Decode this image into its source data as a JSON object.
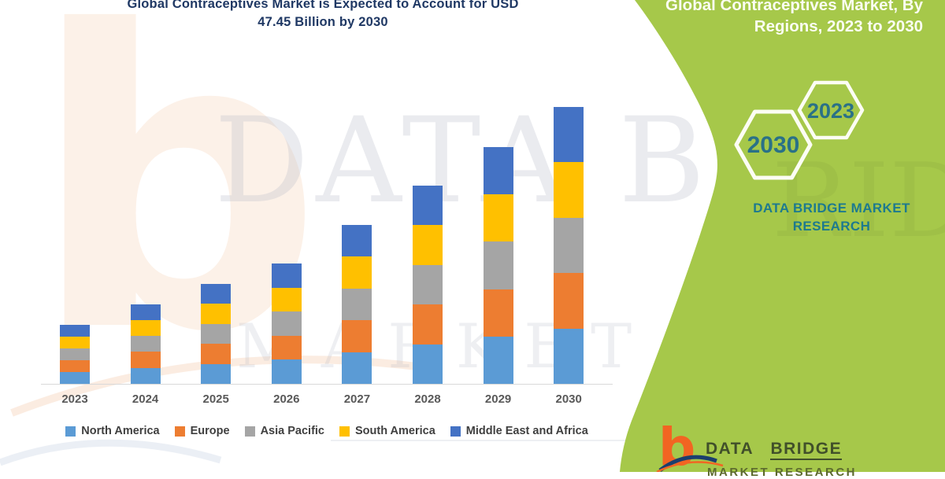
{
  "chart_title": {
    "line1": "Global Contraceptives Market is Expected to Account for USD",
    "line2": "47.45 Billion by 2030"
  },
  "chart_data": {
    "type": "bar",
    "subtype": "stacked",
    "title": "Global Contraceptives Market is Expected to Account for USD 47.45 Billion by 2030",
    "unit": "USD Billion",
    "categories": [
      "2023",
      "2024",
      "2025",
      "2026",
      "2027",
      "2028",
      "2029",
      "2030"
    ],
    "series": [
      {
        "name": "North America",
        "color": "#5B9BD5",
        "values": [
          2.04,
          2.74,
          3.42,
          4.12,
          5.44,
          6.8,
          8.12,
          9.49
        ]
      },
      {
        "name": "Europe",
        "color": "#ED7D31",
        "values": [
          2.04,
          2.74,
          3.42,
          4.12,
          5.44,
          6.8,
          8.12,
          9.49
        ]
      },
      {
        "name": "Asia Pacific",
        "color": "#A5A5A5",
        "values": [
          2.04,
          2.74,
          3.42,
          4.12,
          5.44,
          6.8,
          8.12,
          9.49
        ]
      },
      {
        "name": "South America",
        "color": "#FFC000",
        "values": [
          2.04,
          2.74,
          3.42,
          4.12,
          5.44,
          6.8,
          8.12,
          9.49
        ]
      },
      {
        "name": "Middle East and Africa",
        "color": "#4472C4",
        "values": [
          2.04,
          2.74,
          3.42,
          4.12,
          5.44,
          6.8,
          8.12,
          9.49
        ]
      }
    ],
    "totals": [
      10.2,
      13.7,
      17.1,
      20.6,
      27.2,
      34.0,
      40.6,
      47.45
    ],
    "ylim": [
      0,
      47.45
    ],
    "gridlines": false,
    "axis_labels_shown": false,
    "legend_position": "bottom"
  },
  "side_panel": {
    "title_line1": "Global Contraceptives Market, By",
    "title_line2": "Regions, 2023 to 2030",
    "hexagons": [
      {
        "label": "2030"
      },
      {
        "label": "2023"
      }
    ],
    "brand_line1": "DATA BRIDGE MARKET",
    "brand_line2": "RESEARCH",
    "panel_color": "#a3c644",
    "brand_text_color": "#1d7a8e"
  },
  "footer_logo": {
    "letter": "b",
    "word1": "DATA",
    "word2": "BRIDGE",
    "subtext": "MARKET RESEARCH",
    "orange": "#f26522"
  },
  "watermark": {
    "letter": "b",
    "line1": "DATA BRIDGE",
    "line2": "MARKET RESEARCH"
  },
  "colors": {
    "title_navy": "#1f3864",
    "axis_label_gray": "#595959",
    "legend_text_gray": "#3f3f3f"
  }
}
